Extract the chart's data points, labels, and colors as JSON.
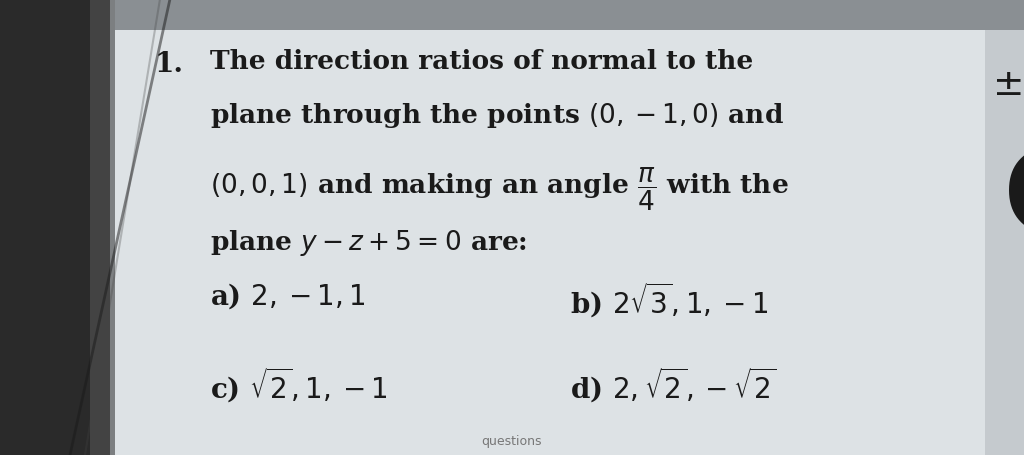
{
  "bg_color": "#b8bfc4",
  "page_color": "#dde2e5",
  "top_bar_color": "#8a8f93",
  "left_dark_color": "#2a2a2a",
  "text_color": "#1a1a1a",
  "question_number": "1.",
  "line1": "The direction ratios of normal to the",
  "line2": "plane through the points $(0,-1,0)$ and",
  "line3": "$(0,0,1)$ and making an angle $\\dfrac{\\pi}{4}$ with the",
  "line4": "plane $y-z+5=0$ are:",
  "opt_a": "a) $2,-1,1$",
  "opt_b": "b) $2\\sqrt{3},1,-1$",
  "opt_c": "c) $\\sqrt{2},1,-1$",
  "opt_d": "d) $2,\\sqrt{2},-\\sqrt{2}$",
  "side_pm": "$\\pm$",
  "font_size": 19,
  "opt_font_size": 20
}
